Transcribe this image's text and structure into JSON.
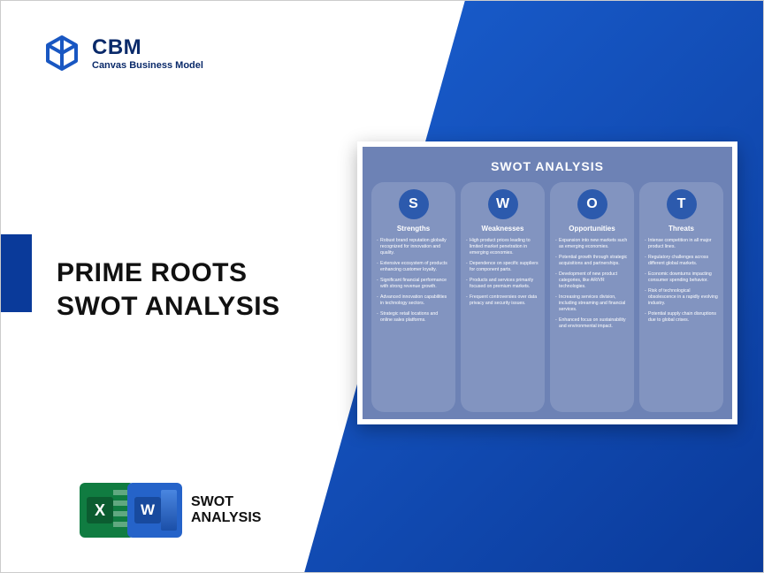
{
  "brand": {
    "name": "CBM",
    "tagline": "Canvas Business Model",
    "logo_color": "#1957c2"
  },
  "colors": {
    "wedge_gradient_start": "#1a5fd0",
    "wedge_gradient_end": "#0a3a9a",
    "accent_bar": "#0a3a9a",
    "swot_card_bg": "#6d82b5",
    "swot_col_bg": "#8294c0",
    "swot_circle_bg": "#2c5aad",
    "text_dark": "#111111",
    "text_brand": "#0a2a6a"
  },
  "title": {
    "line1": "PRIME ROOTS",
    "line2": "SWOT ANALYSIS"
  },
  "footer": {
    "label_line1": "SWOT",
    "label_line2": "ANALYSIS"
  },
  "swot": {
    "title": "SWOT ANALYSIS",
    "columns": [
      {
        "letter": "S",
        "heading": "Strengths",
        "items": [
          "Robust brand reputation globally recognized for innovation and quality.",
          "Extensive ecosystem of products enhancing customer loyalty.",
          "Significant financial performance with strong revenue growth.",
          "Advanced innovation capabilities in technology sectors.",
          "Strategic retail locations and online sales platforms."
        ]
      },
      {
        "letter": "W",
        "heading": "Weaknesses",
        "items": [
          "High product prices leading to limited market penetration in emerging economies.",
          "Dependence on specific suppliers for component parts.",
          "Products and services primarily focused on premium markets.",
          "Frequent controversies over data privacy and security issues."
        ]
      },
      {
        "letter": "O",
        "heading": "Opportunities",
        "items": [
          "Expansion into new markets such as emerging economies.",
          "Potential growth through strategic acquisitions and partnerships.",
          "Development of new product categories, like AR/VR technologies.",
          "Increasing services division, including streaming and financial services.",
          "Enhanced focus on sustainability and environmental impact."
        ]
      },
      {
        "letter": "T",
        "heading": "Threats",
        "items": [
          "Intense competition in all major product lines.",
          "Regulatory challenges across different global markets.",
          "Economic downturns impacting consumer spending behavior.",
          "Risk of technological obsolescence in a rapidly evolving industry.",
          "Potential supply chain disruptions due to global crises."
        ]
      }
    ]
  }
}
